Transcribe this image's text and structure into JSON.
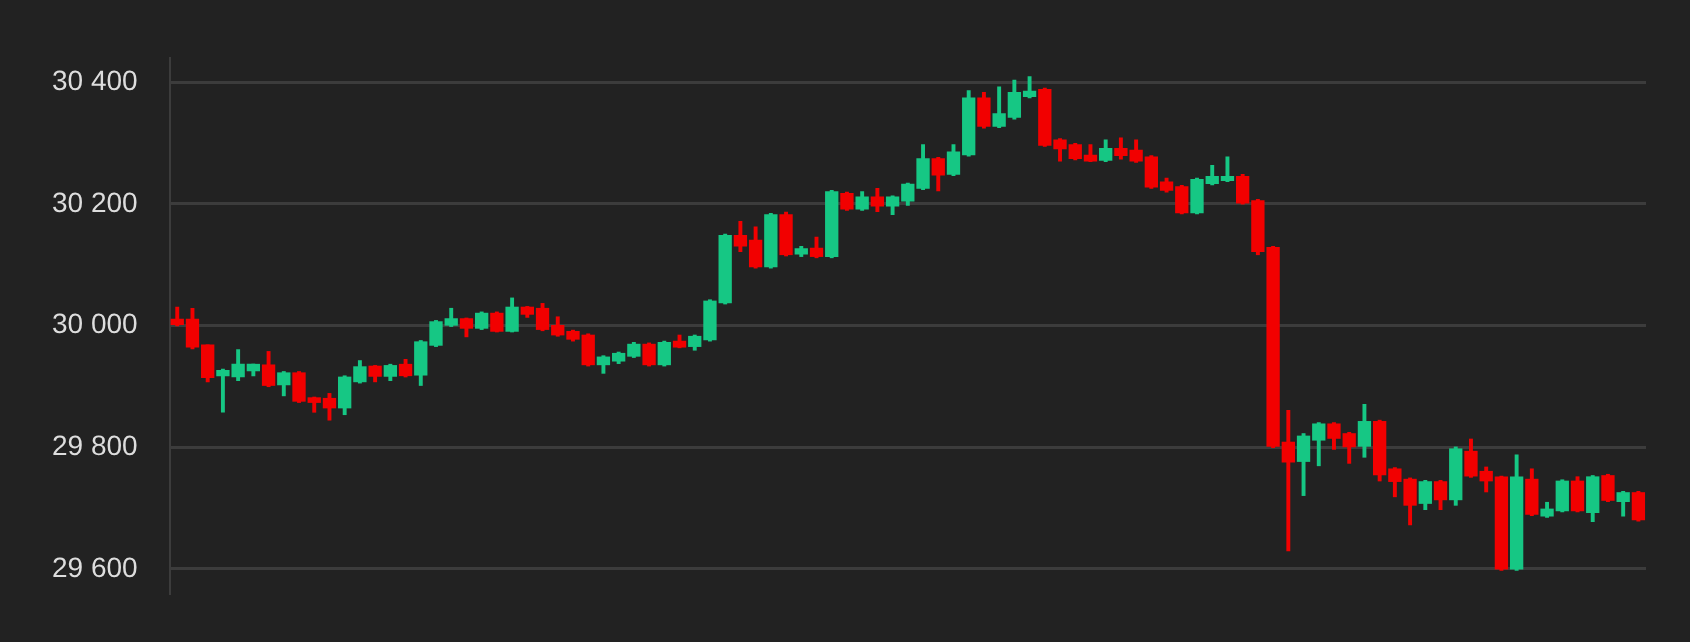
{
  "chart_data": {
    "type": "candlestick",
    "categories": [
      null,
      null,
      null,
      null,
      null,
      null,
      null,
      null,
      null,
      null,
      null,
      null,
      null,
      null,
      null,
      null,
      null,
      null,
      null,
      null,
      null,
      null,
      null,
      null,
      null,
      null,
      null,
      null,
      null,
      null,
      null,
      null,
      null,
      null,
      null,
      null,
      null,
      null,
      null,
      null,
      null,
      null,
      null,
      null,
      null,
      null,
      null,
      null,
      null,
      null,
      null,
      null,
      null,
      null,
      null,
      null,
      null,
      null,
      null,
      null,
      null,
      null,
      null,
      null,
      null,
      null,
      null,
      null,
      null,
      null,
      null,
      null,
      null,
      null,
      null,
      null,
      null,
      null,
      null,
      null,
      null,
      null,
      null,
      null,
      null,
      null,
      null,
      null,
      null,
      null,
      null,
      null,
      null,
      null,
      null,
      null,
      null
    ],
    "ohlc": [
      [
        30010,
        30030,
        30000,
        30002
      ],
      [
        30010,
        30028,
        29962,
        29965
      ],
      [
        29968,
        29968,
        29908,
        29915
      ],
      [
        29918,
        29928,
        29858,
        29926
      ],
      [
        29916,
        29960,
        29910,
        29936
      ],
      [
        29926,
        29936,
        29918,
        29936
      ],
      [
        29935,
        29957,
        29900,
        29902
      ],
      [
        29903,
        29924,
        29885,
        29922
      ],
      [
        29922,
        29924,
        29874,
        29876
      ],
      [
        29881,
        29882,
        29858,
        29874
      ],
      [
        29880,
        29888,
        29845,
        29865
      ],
      [
        29865,
        29917,
        29854,
        29915
      ],
      [
        29908,
        29942,
        29906,
        29932
      ],
      [
        29933,
        29934,
        29908,
        29917
      ],
      [
        29917,
        29936,
        29910,
        29934
      ],
      [
        29936,
        29944,
        29916,
        29918
      ],
      [
        29919,
        29975,
        29902,
        29973
      ],
      [
        29968,
        30008,
        29966,
        30006
      ],
      [
        30001,
        30028,
        29999,
        30011
      ],
      [
        30011,
        30012,
        29982,
        29996
      ],
      [
        29996,
        30022,
        29994,
        30020
      ],
      [
        30020,
        30022,
        29990,
        29991
      ],
      [
        29991,
        30045,
        29990,
        30030
      ],
      [
        30030,
        30031,
        30014,
        30019
      ],
      [
        30028,
        30036,
        29992,
        29994
      ],
      [
        30000,
        30014,
        29983,
        29985
      ],
      [
        29990,
        29992,
        29975,
        29978
      ],
      [
        29984,
        29986,
        29934,
        29936
      ],
      [
        29936,
        29950,
        29922,
        29948
      ],
      [
        29942,
        29956,
        29938,
        29954
      ],
      [
        29950,
        29972,
        29948,
        29969
      ],
      [
        29969,
        29971,
        29934,
        29936
      ],
      [
        29936,
        29974,
        29934,
        29972
      ],
      [
        29974,
        29984,
        29964,
        29965
      ],
      [
        29966,
        29984,
        29960,
        29982
      ],
      [
        29977,
        30042,
        29975,
        30040
      ],
      [
        30038,
        30150,
        30036,
        30148
      ],
      [
        30148,
        30171,
        30122,
        30131
      ],
      [
        30140,
        30162,
        30095,
        30097
      ],
      [
        30097,
        30184,
        30095,
        30182
      ],
      [
        30182,
        30186,
        30115,
        30117
      ],
      [
        30118,
        30130,
        30114,
        30126
      ],
      [
        30127,
        30145,
        30112,
        30114
      ],
      [
        30114,
        30222,
        30112,
        30220
      ],
      [
        30217,
        30219,
        30190,
        30192
      ],
      [
        30192,
        30220,
        30190,
        30211
      ],
      [
        30211,
        30225,
        30188,
        30197
      ],
      [
        30197,
        30213,
        30183,
        30211
      ],
      [
        30205,
        30234,
        30198,
        30232
      ],
      [
        30226,
        30297,
        30224,
        30274
      ],
      [
        30274,
        30276,
        30222,
        30248
      ],
      [
        30249,
        30297,
        30247,
        30285
      ],
      [
        30281,
        30386,
        30279,
        30374
      ],
      [
        30374,
        30383,
        30325,
        30328
      ],
      [
        30328,
        30392,
        30326,
        30348
      ],
      [
        30343,
        30403,
        30340,
        30383
      ],
      [
        30377,
        30409,
        30375,
        30385
      ],
      [
        30388,
        30390,
        30295,
        30297
      ],
      [
        30305,
        30307,
        30271,
        30291
      ],
      [
        30297,
        30299,
        30273,
        30275
      ],
      [
        30280,
        30297,
        30270,
        30271
      ],
      [
        30272,
        30305,
        30270,
        30291
      ],
      [
        30291,
        30308,
        30274,
        30280
      ],
      [
        30288,
        30305,
        30269,
        30271
      ],
      [
        30277,
        30279,
        30226,
        30228
      ],
      [
        30236,
        30242,
        30220,
        30223
      ],
      [
        30228,
        30230,
        30184,
        30186
      ],
      [
        30186,
        30242,
        30184,
        30240
      ],
      [
        30234,
        30263,
        30232,
        30245
      ],
      [
        30239,
        30277,
        30237,
        30245
      ],
      [
        30245,
        30248,
        30200,
        30202
      ],
      [
        30205,
        30207,
        30117,
        30122
      ],
      [
        30128,
        30130,
        29800,
        29802
      ],
      [
        29808,
        29860,
        29630,
        29776
      ],
      [
        29777,
        29822,
        29721,
        29818
      ],
      [
        29812,
        29840,
        29770,
        29838
      ],
      [
        29838,
        29840,
        29797,
        29815
      ],
      [
        29822,
        29824,
        29774,
        29801
      ],
      [
        29802,
        29870,
        29784,
        29842
      ],
      [
        29842,
        29844,
        29745,
        29755
      ],
      [
        29764,
        29766,
        29719,
        29744
      ],
      [
        29747,
        29749,
        29673,
        29705
      ],
      [
        29708,
        29745,
        29698,
        29743
      ],
      [
        29743,
        29745,
        29698,
        29714
      ],
      [
        29714,
        29800,
        29705,
        29797
      ],
      [
        29793,
        29813,
        29751,
        29753
      ],
      [
        29760,
        29767,
        29727,
        29745
      ],
      [
        29751,
        29752,
        29598,
        29600
      ],
      [
        29600,
        29787,
        29598,
        29751
      ],
      [
        29747,
        29764,
        29688,
        29690
      ],
      [
        29687,
        29709,
        29685,
        29698
      ],
      [
        29696,
        29746,
        29694,
        29744
      ],
      [
        29744,
        29751,
        29694,
        29696
      ],
      [
        29693,
        29753,
        29678,
        29751
      ],
      [
        29753,
        29755,
        29711,
        29713
      ],
      [
        29711,
        29727,
        29687,
        29725
      ],
      [
        29725,
        29727,
        29679,
        29681
      ]
    ],
    "colors": [
      "#f20000",
      "#f20000",
      "#f20000",
      "#16c784",
      "#16c784",
      "#16c784",
      "#f20000",
      "#16c784",
      "#f20000",
      "#f20000",
      "#f20000",
      "#16c784",
      "#16c784",
      "#f20000",
      "#16c784",
      "#f20000",
      "#16c784",
      "#16c784",
      "#16c784",
      "#f20000",
      "#16c784",
      "#f20000",
      "#16c784",
      "#f20000",
      "#f20000",
      "#f20000",
      "#f20000",
      "#f20000",
      "#16c784",
      "#16c784",
      "#16c784",
      "#f20000",
      "#16c784",
      "#f20000",
      "#16c784",
      "#16c784",
      "#16c784",
      "#f20000",
      "#f20000",
      "#16c784",
      "#f20000",
      "#16c784",
      "#f20000",
      "#16c784",
      "#f20000",
      "#16c784",
      "#f20000",
      "#16c784",
      "#16c784",
      "#16c784",
      "#f20000",
      "#16c784",
      "#16c784",
      "#f20000",
      "#16c784",
      "#16c784",
      "#16c784",
      "#f20000",
      "#f20000",
      "#f20000",
      "#f20000",
      "#16c784",
      "#f20000",
      "#f20000",
      "#f20000",
      "#f20000",
      "#f20000",
      "#16c784",
      "#16c784",
      "#16c784",
      "#f20000",
      "#f20000",
      "#f20000",
      "#f20000",
      "#16c784",
      "#16c784",
      "#f20000",
      "#f20000",
      "#16c784",
      "#f20000",
      "#f20000",
      "#f20000",
      "#16c784",
      "#f20000",
      "#16c784",
      "#f20000",
      "#f20000",
      "#f20000",
      "#16c784",
      "#f20000",
      "#16c784",
      "#16c784",
      "#f20000",
      "#16c784",
      "#f20000",
      "#16c784",
      "#f20000"
    ],
    "ylim": [
      29560,
      30440
    ],
    "yticks": [
      {
        "value": 29600,
        "label": "29 600"
      },
      {
        "value": 29800,
        "label": "29 800"
      },
      {
        "value": 30000,
        "label": "30 000"
      },
      {
        "value": 30200,
        "label": "30 200"
      },
      {
        "value": 30400,
        "label": "30 400"
      }
    ],
    "grid": "y",
    "tick_labels": "y",
    "legend": false
  }
}
